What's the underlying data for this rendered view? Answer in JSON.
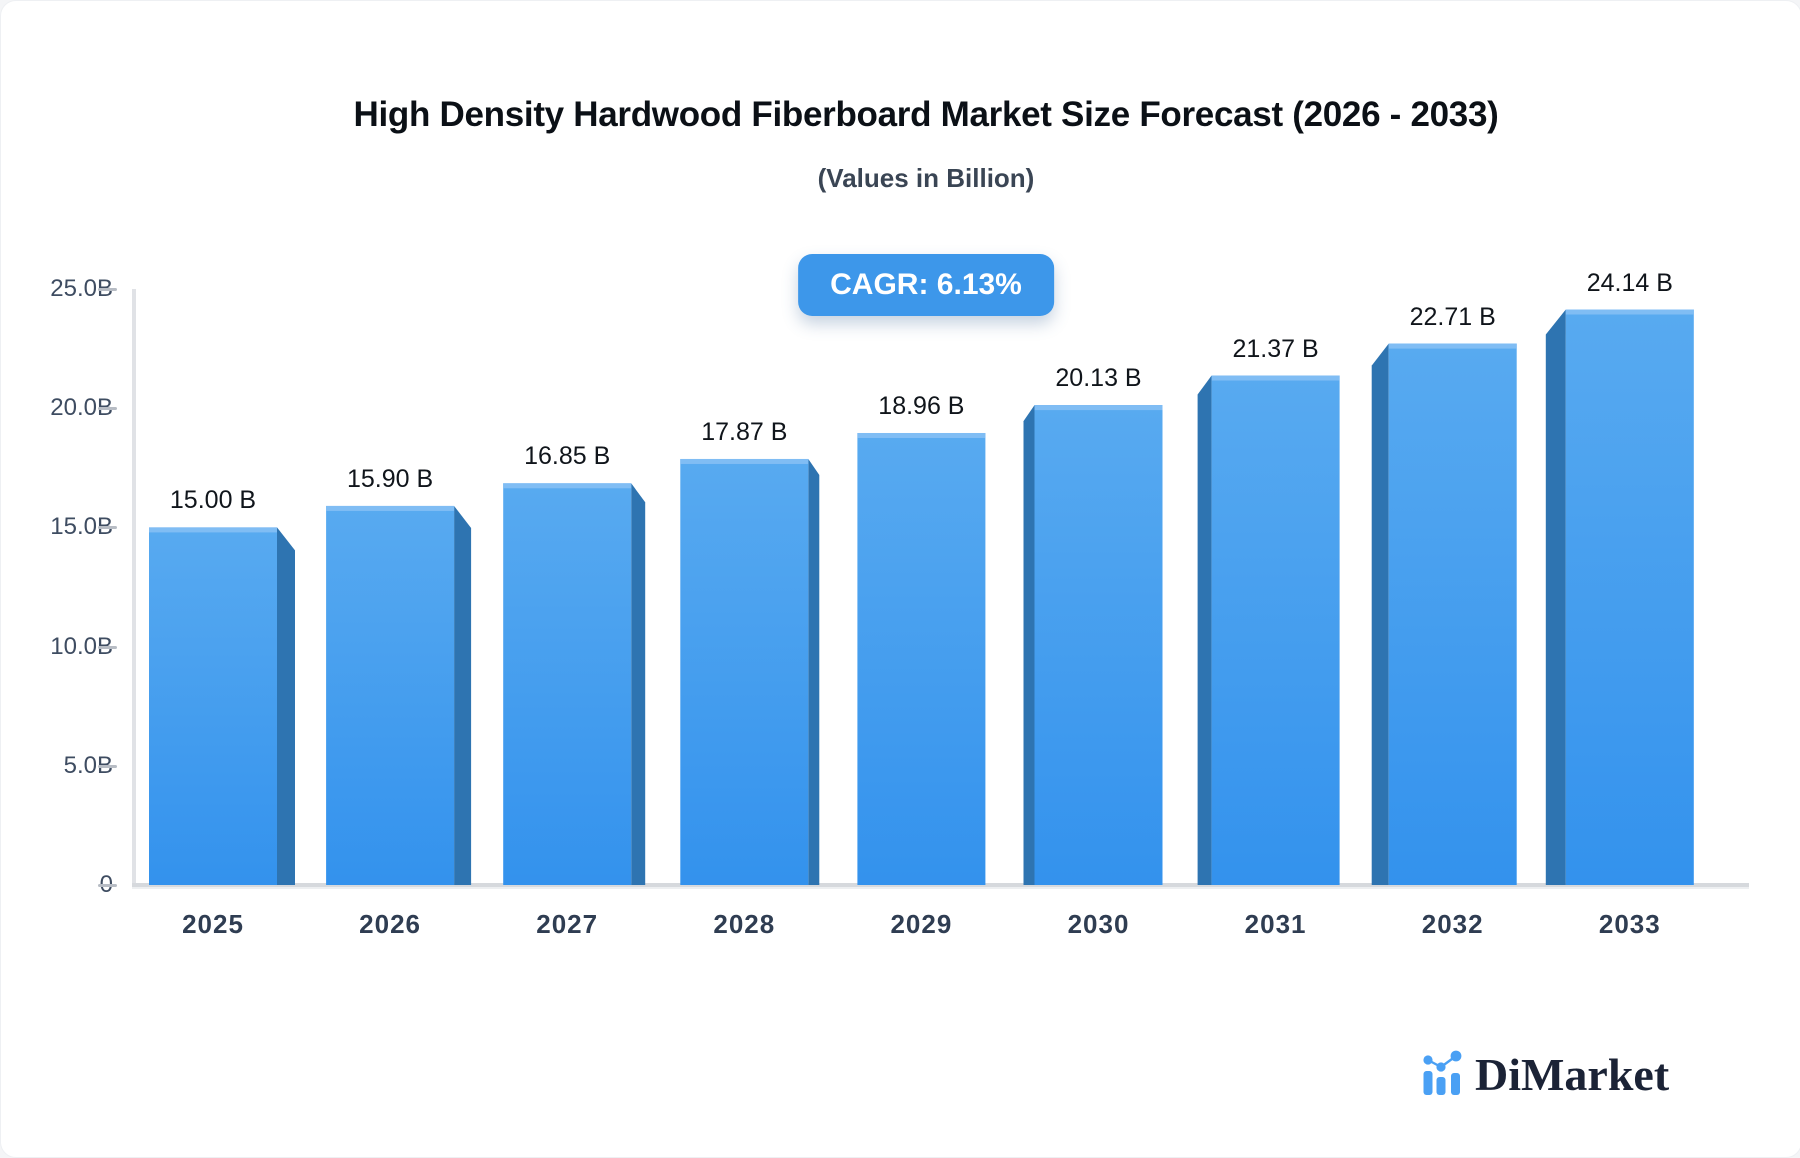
{
  "header": {
    "title": "High Density Hardwood Fiberboard Market Size Forecast (2026 - 2033)",
    "subtitle": "(Values in Billion)",
    "cagr_label": "CAGR: 6.13%"
  },
  "footer": {
    "brand": "DiMarket"
  },
  "chart_data": {
    "type": "bar",
    "title": "High Density Hardwood Fiberboard Market Size Forecast (2026 - 2033)",
    "subtitle": "(Values in Billion)",
    "annotation": "CAGR: 6.13%",
    "categories": [
      "2025",
      "2026",
      "2027",
      "2028",
      "2029",
      "2030",
      "2031",
      "2032",
      "2033"
    ],
    "values": [
      15.0,
      15.9,
      16.85,
      17.87,
      18.96,
      20.13,
      21.37,
      22.71,
      24.14
    ],
    "bar_labels": [
      "15.00 B",
      "15.90 B",
      "16.85 B",
      "17.87 B",
      "18.96 B",
      "20.13 B",
      "21.37 B",
      "22.71 B",
      "24.14 B"
    ],
    "xlabel": "",
    "ylabel": "",
    "ylim": [
      0,
      25
    ],
    "y_ticks": [
      {
        "value": 0,
        "label": "0"
      },
      {
        "value": 5,
        "label": "5.0B"
      },
      {
        "value": 10,
        "label": "10.0B"
      },
      {
        "value": 15,
        "label": "15.0B"
      },
      {
        "value": 20,
        "label": "20.0B"
      },
      {
        "value": 25,
        "label": "25.0B"
      }
    ],
    "grid": false,
    "legend": false,
    "colors": {
      "bar_face_top": "#58aaf0",
      "bar_face_bottom": "#3392ed",
      "bar_side": "#2e74b1",
      "bar_top_highlight": "#80bdf4",
      "badge_bg": "#3d97ea",
      "axis_line": "#d6d9dd",
      "tick_text": "#3e4c61",
      "category_text": "#2f3d52",
      "value_text": "#10151b",
      "title_text": "#0b1016",
      "brand_blue": "#4aa0f4",
      "brand_navy": "#1b2336"
    }
  }
}
